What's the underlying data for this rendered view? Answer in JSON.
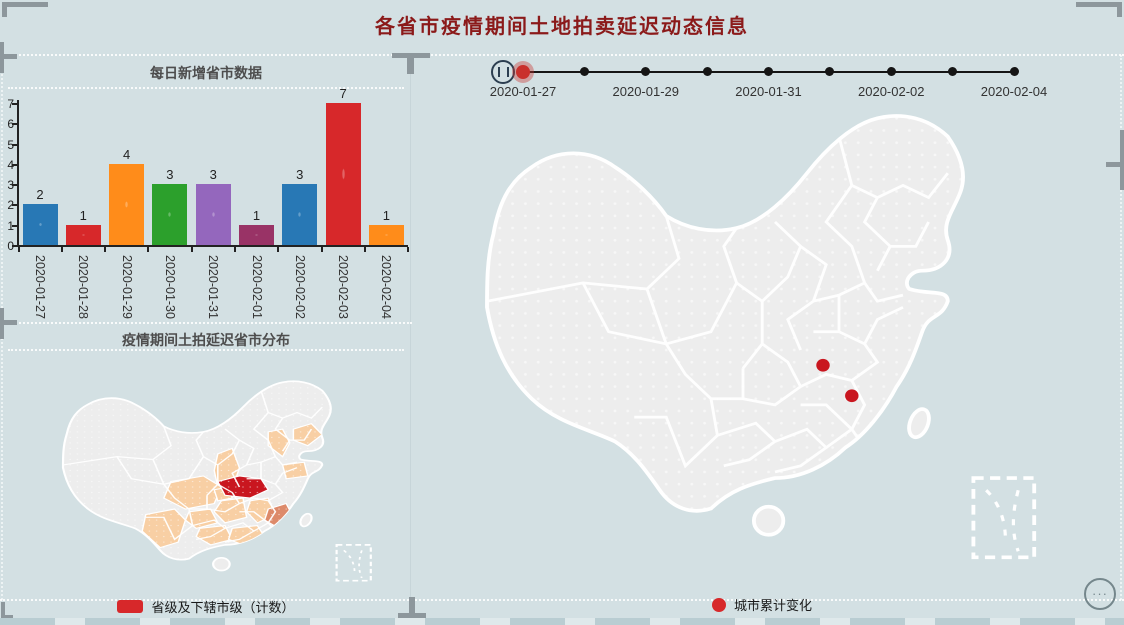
{
  "page": {
    "title": "各省市疫情期间土地拍卖延迟动态信息"
  },
  "colors": {
    "background": "#d3e0e3",
    "title_text": "#8b1a1a",
    "accent_red": "#d7282a",
    "timeline_current": "#c9302c",
    "map_level_high": "#c9161f",
    "map_level_mid": "#dd8a6a",
    "map_level_low": "#f8cfa4",
    "map_base": "#ededed"
  },
  "panels": {
    "daily": {
      "title": "每日新增省市数据"
    },
    "dist": {
      "title": "疫情期间土拍延迟省市分布",
      "legend_label": "省级及下辖市级（计数）"
    },
    "main": {
      "legend_label": "城市累计变化",
      "more_icon": "···"
    }
  },
  "timeline": {
    "dates": [
      "2020-01-27",
      "2020-01-28",
      "2020-01-29",
      "2020-01-30",
      "2020-01-31",
      "2020-02-01",
      "2020-02-02",
      "2020-02-03",
      "2020-02-04"
    ],
    "labeled_dates": [
      "2020-01-27",
      "2020-01-29",
      "2020-01-31",
      "2020-02-02",
      "2020-02-04"
    ],
    "current_date": "2020-01-27",
    "control": "pause"
  },
  "chart_data": [
    {
      "type": "bar",
      "title": "每日新增省市数据",
      "categories": [
        "2020-01-27",
        "2020-01-28",
        "2020-01-29",
        "2020-01-30",
        "2020-01-31",
        "2020-02-01",
        "2020-02-02",
        "2020-02-03",
        "2020-02-04"
      ],
      "values": [
        2,
        1,
        4,
        3,
        3,
        1,
        3,
        7,
        1
      ],
      "colors": [
        "#2878b5",
        "#d7282a",
        "#ff8c1a",
        "#2ca02c",
        "#9467bd",
        "#993366",
        "#2878b5",
        "#d7282a",
        "#ff8c1a"
      ],
      "ylim": [
        0,
        7
      ],
      "yticks": [
        0,
        1,
        2,
        3,
        4,
        5,
        6,
        7
      ],
      "value_labels": true,
      "x_label_rotation": 90,
      "grid": false
    },
    {
      "type": "heatmap",
      "subtype": "china-choropleth",
      "title": "疫情期间土拍延迟省市分布",
      "legend": "省级及下辖市级（计数）",
      "regions": [
        {
          "name": "湖北",
          "level": "high"
        },
        {
          "name": "福建",
          "level": "mid"
        },
        {
          "name": "辽宁",
          "level": "low"
        },
        {
          "name": "河北",
          "level": "low"
        },
        {
          "name": "江苏",
          "level": "low"
        },
        {
          "name": "陕西",
          "level": "low"
        },
        {
          "name": "四川",
          "level": "low"
        },
        {
          "name": "重庆",
          "level": "low"
        },
        {
          "name": "贵州",
          "level": "low"
        },
        {
          "name": "云南",
          "level": "low"
        },
        {
          "name": "广西",
          "level": "low"
        },
        {
          "name": "广东",
          "level": "low"
        },
        {
          "name": "湖南",
          "level": "low"
        },
        {
          "name": "江西",
          "level": "low"
        }
      ]
    },
    {
      "type": "scatter",
      "subtype": "china-map-points",
      "title": "城市累计变化",
      "date_shown": "2020-01-27",
      "points": [
        {
          "x": 57.5,
          "y": 43.5
        },
        {
          "x": 62,
          "y": 48.5
        }
      ]
    }
  ]
}
